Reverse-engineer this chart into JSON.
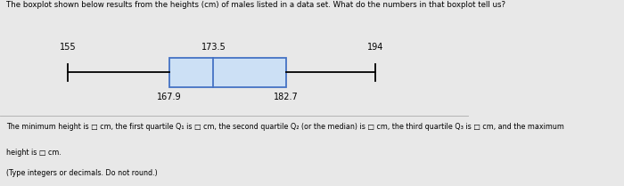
{
  "title": "The boxplot shown below results from the heights (cm) of males listed in a data set. What do the numbers in that boxplot tell us?",
  "min": 155,
  "q1": 167.9,
  "median": 173.5,
  "q3": 182.7,
  "max": 194,
  "box_color": "#4472c4",
  "box_facecolor": "#cce0f5",
  "line_color": "black",
  "bg_color": "#e8e8e8",
  "bottom_text_line1": "The minimum height is □ cm, the first quartile Q₁ is □ cm, the second quartile Q₂ (or the median) is □ cm, the third quartile Q₃ is □ cm, and the maximum",
  "bottom_text_line2": "height is □ cm.",
  "bottom_text_line3": "(Type integers or decimals. Do not round.)",
  "label_155": "155",
  "label_1735": "173.5",
  "label_194": "194",
  "label_1679": "167.9",
  "label_1827": "182.7",
  "xlim_min": 148,
  "xlim_max": 205
}
